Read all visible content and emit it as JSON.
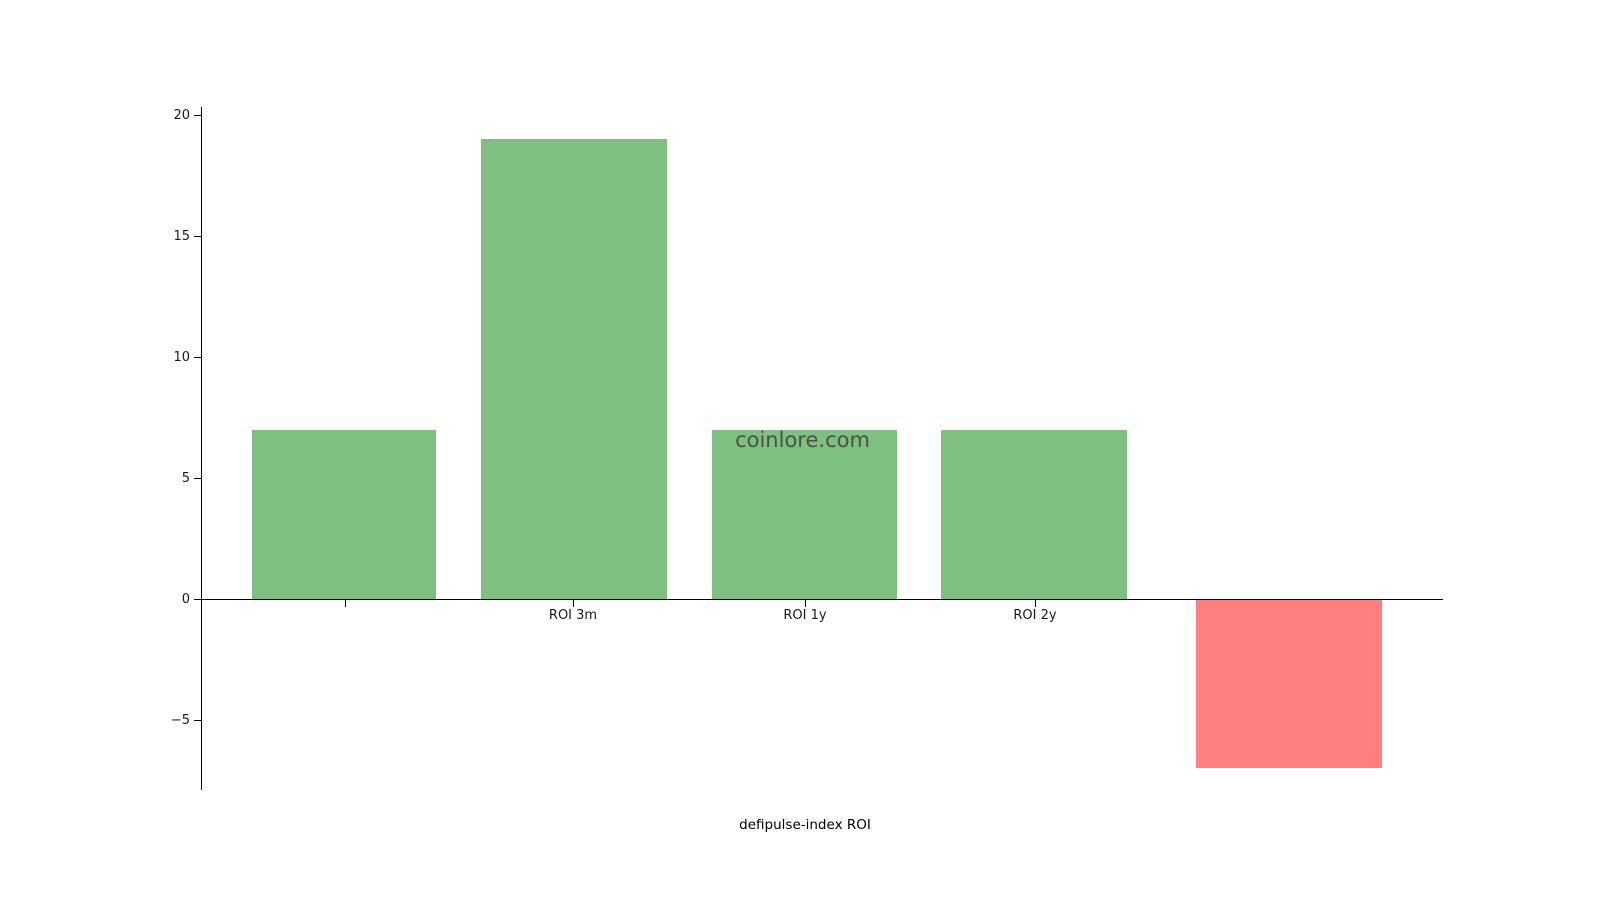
{
  "chart_data": {
    "type": "bar",
    "categories": [
      "",
      "ROI 3m",
      "ROI 1y",
      "ROI 2y",
      ""
    ],
    "values": [
      7,
      19,
      7,
      7,
      -7
    ],
    "title": "defipulse-index ROI",
    "xlabel": "",
    "ylabel": "",
    "y_ticks": [
      20,
      15,
      10,
      5,
      0,
      -5
    ],
    "ylim": [
      -7.9,
      20.3
    ],
    "grid": false,
    "legend": "none",
    "positive_color": "#7fbf7f",
    "negative_color": "#ff7f7f",
    "axis_color": "#000000",
    "watermark": {
      "text": "coinlore.com",
      "color": "#3c3c3c"
    }
  }
}
